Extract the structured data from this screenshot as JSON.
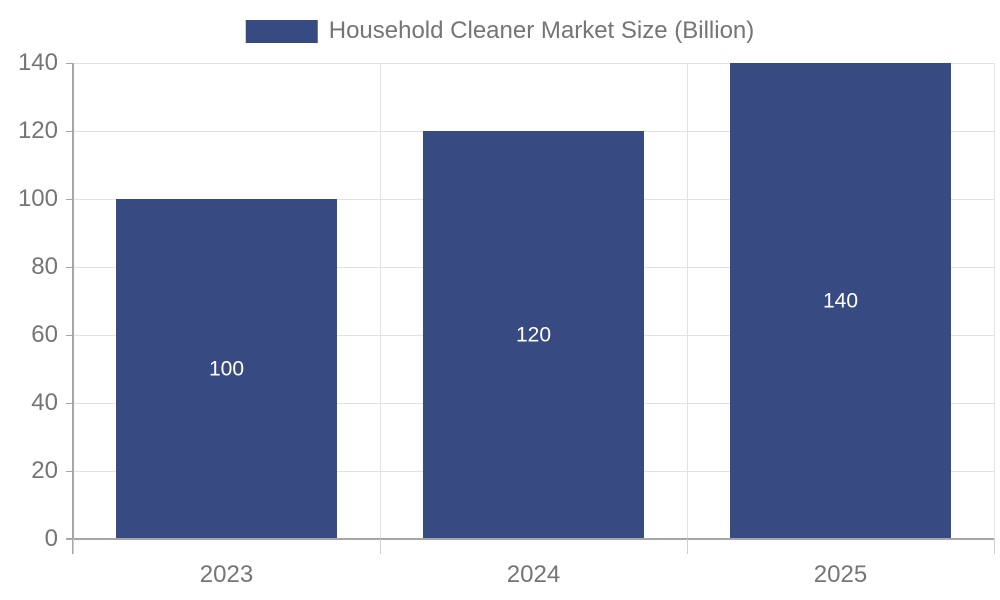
{
  "legend": {
    "items": [
      {
        "label": "Household Cleaner Market Size (Billion)",
        "color": "#374A82"
      }
    ]
  },
  "colors": {
    "bar": "#374A82",
    "grid": "#e2e2e2",
    "axis": "#a6a6a6",
    "tick_text": "#757575",
    "value_label": "#ffffff",
    "background": "#ffffff"
  },
  "chart_data": {
    "type": "bar",
    "title": "Household Cleaner Market Size (Billion)",
    "categories": [
      "2023",
      "2024",
      "2025"
    ],
    "series": [
      {
        "name": "Household Cleaner Market Size (Billion)",
        "values": [
          100,
          120,
          140
        ]
      }
    ],
    "values": [
      100,
      120,
      140
    ],
    "xlabel": "",
    "ylabel": "",
    "ylim": [
      0,
      140
    ],
    "yticks": [
      0,
      20,
      40,
      60,
      80,
      100,
      120,
      140
    ],
    "grid": true,
    "legend_position": "top-center",
    "value_label_position": "inside-center"
  }
}
